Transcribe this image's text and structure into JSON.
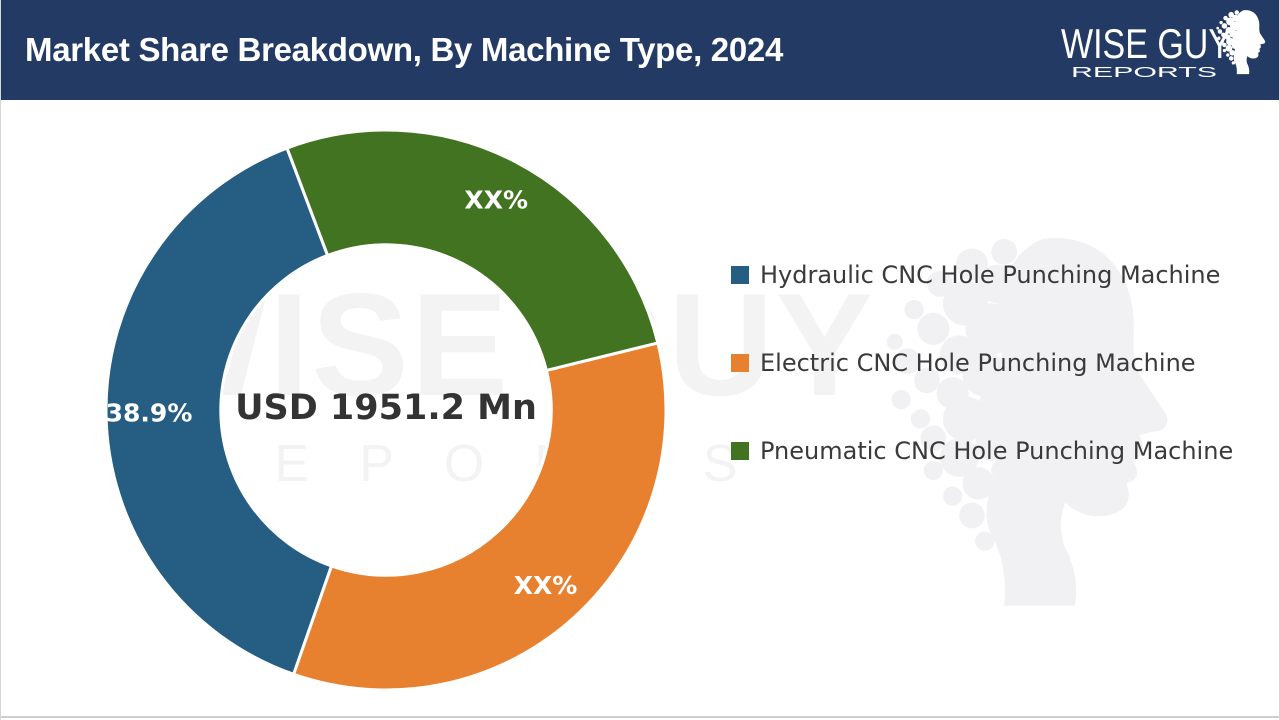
{
  "header": {
    "title": "Market Share Breakdown, By Machine Type, 2024",
    "logo": {
      "line1": "WISE GUY",
      "line2": "REPORTS"
    }
  },
  "watermark": {
    "line1": "WISE GUY",
    "line2": "REPORTS"
  },
  "chart_data": {
    "type": "pie",
    "subtype": "donut",
    "title": "Market Share Breakdown, By Machine Type, 2024",
    "center_label": "USD 1951.2 Mn",
    "start_angle_deg": 110.7,
    "direction": "counterclockwise",
    "inner_radius_ratio": 0.59,
    "legend_position": "right",
    "segments": [
      {
        "name": "Hydraulic CNC Hole Punching Machine",
        "display_pct": "38.9%",
        "share_pct_est": 38.9,
        "color": "#265d82"
      },
      {
        "name": "Electric CNC Hole Punching Machine",
        "display_pct": "XX%",
        "share_pct_est": 34.2,
        "color": "#e8812f"
      },
      {
        "name": "Pneumatic CNC Hole Punching Machine",
        "display_pct": "XX%",
        "share_pct_est": 26.9,
        "color": "#427321"
      }
    ]
  },
  "colors": {
    "header_bg": "#223a64",
    "center_text": "#333333",
    "legend_text": "#3a3a3a",
    "watermark": "#f3f3f3",
    "slice_gap": "#ffffff"
  }
}
